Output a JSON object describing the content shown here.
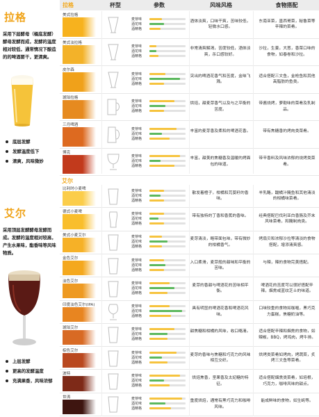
{
  "header": {
    "category": "拉格",
    "glass": "杯型",
    "params": "参数",
    "flavor": "风味风格",
    "pairing": "食物搭配"
  },
  "sections": [
    {
      "title": "拉格",
      "desc": "采用下层酵母（桶底发酵）酵母发酵而成，发酵的温度相对较低，通常情况下酿造的的啤酒要干，更清爽。",
      "bullets": [
        "底层发酵",
        "发酵温度低下",
        "清爽，风味微妙"
      ]
    },
    {
      "title": "艾尔",
      "desc": "采用顶层发酵酵母发酵而成。发酵的温度相对较高，产生水果味，酯香味等风味物质。",
      "bullets": [
        "上层发酵",
        "更高的发酵温度",
        "充满果香，风味浓郁"
      ]
    }
  ],
  "param_labels": [
    "麦芽味",
    "酒花味",
    "酒精格"
  ],
  "categories": [
    "拉格",
    "艾尔"
  ],
  "colors": {
    "accent": "#f2a81a",
    "bitter_bar": "#5bb85d",
    "malt_bar": "#f6c33d"
  },
  "rows": [
    {
      "group": "拉格",
      "name": "美式拉格",
      "color": "#f7b21e",
      "glass": "pilsner",
      "params": [
        0.35,
        0.4,
        0.3
      ],
      "flavor": "酒体淡爽，口味干爽，苦味较低，轻微水口感。",
      "pairing": "东南亚菜，墨西哥菜，秘鲁菜等辛辣的菜肴。"
    },
    {
      "group": "拉格",
      "name": "美式淡拉格",
      "color": "#f3b229",
      "glass": "pilsner",
      "params": [
        0.2,
        0.2,
        0.25
      ],
      "flavor": "非常清爽解渴，苦度较低，酒体淡爽，杀口感较好。",
      "pairing": "沙拉，生姜，大葱，香菜口味的食物，如春卷和沙拉。"
    },
    {
      "group": "拉格",
      "name": "皮尔森",
      "color": "#f0a11a",
      "glass": "pilsner",
      "params": [
        0.45,
        0.85,
        0.4
      ],
      "flavor": "突出的啤酒花香气和苦度，金味飞溅。",
      "pairing": "适合搭配三文鱼，金枪鱼和其他高脂肪的鱼类。"
    },
    {
      "group": "拉格",
      "name": "琥珀拉格",
      "color": "#e68a1f",
      "glass": "mug",
      "params": [
        0.7,
        0.45,
        0.4
      ],
      "flavor": "烘焙，甜麦芽香气以及与之平衡的苦度。",
      "pairing": "带酱烧烤，萝勒味的菜肴及乳制品。"
    },
    {
      "group": "拉格",
      "name": "三月啤酒",
      "color": "#dd6a20",
      "glass": "stein",
      "params": [
        0.75,
        0.35,
        0.55
      ],
      "flavor": "丰富的麦芽香及柔和的啤酒花香。",
      "pairing": "带有焦糖香的烤肉类菜肴。"
    },
    {
      "group": "拉格",
      "name": "博克",
      "color": "#c23a1c",
      "glass": "goblet",
      "params": [
        0.85,
        0.3,
        0.7
      ],
      "flavor": "丰富，甜美的焦糖香及温暖的烤面包的味道。",
      "pairing": "带辛香料及风味浓郁的烧烤类菜肴。"
    },
    {
      "group": "艾尔",
      "name": "比利时小麦啤",
      "color": "#fbcd4a",
      "glass": "pint",
      "params": [
        0.4,
        0.3,
        0.4
      ],
      "flavor": "散发着橙子，柑橘和芫荽籽的香味。",
      "pairing": "羊乳酪，酸橘汁腌鱼和其他清淡的柑橘味菜肴。"
    },
    {
      "group": "艾尔",
      "name": "德式小麦啤",
      "color": "#f9be2c",
      "glass": "weizen",
      "params": [
        0.4,
        0.25,
        0.4
      ],
      "flavor": "带有独特的丁香和香蕉的香味。",
      "pairing": "经典搭配巴伐利亚白香肠及芥末风味菜肴，和腌制肉类。"
    },
    {
      "group": "艾尔",
      "name": "美式小麦艾尔",
      "color": "#f6b127",
      "glass": "pint",
      "params": [
        0.35,
        0.5,
        0.35
      ],
      "flavor": "麦芽清淡，略带面包味，带有微妙的柑橘香气。",
      "pairing": "烤扇贝和浓郁沙拉等清淡的食物搭配，增添清爽感。"
    },
    {
      "group": "艾尔",
      "name": "金色艾尔",
      "color": "#f4a81e",
      "glass": "pint",
      "params": [
        0.4,
        0.45,
        0.4
      ],
      "flavor": "入口柔滑，麦芽般的甜味和平衡的苦味。",
      "pairing": "与辣，辣的食物完美搭配。"
    },
    {
      "group": "艾尔",
      "name": "淡色艾尔",
      "color": "#ee9a22",
      "glass": "pint",
      "params": [
        0.55,
        0.7,
        0.5
      ],
      "flavor": "麦芽的香甜与啤酒花的苦味相平衡。",
      "pairing": "啤酒花的苦度可以很好搭配辛辣，烟熏或蓝纹芝士的味道。"
    },
    {
      "group": "艾尔",
      "name": "印度淡色艾尔(IPA)",
      "color": "#e88520",
      "glass": "tulip",
      "params": [
        0.55,
        0.9,
        0.6
      ],
      "flavor": "具有明显的啤酒花香和啤酒花风味。",
      "pairing": "口味较重的食物如咖喱，黑巧克力蛋糕，焦糖奶油等。"
    },
    {
      "group": "艾尔",
      "name": "琥珀艾尔",
      "color": "#d86a24",
      "glass": "pint",
      "params": [
        0.7,
        0.5,
        0.5
      ],
      "flavor": "甜焦糖和柑橘的风味，收口略清。",
      "pairing": "适合搭配辛辣和烟熏的食物，如辣椒，BBQ，烤鸡肉，烤牛排。"
    },
    {
      "group": "艾尔",
      "name": "棕色艾尔",
      "color": "#b9481f",
      "glass": "pint",
      "params": [
        0.75,
        0.35,
        0.5
      ],
      "flavor": "麦芽的香味与焦糖和巧克力的风味相互交织。",
      "pairing": "烘烤类菜肴如烤肉，烤蔬菜，炙烤三文鱼等菜肴。"
    },
    {
      "group": "艾尔",
      "name": "波特",
      "color": "#7e2a18",
      "glass": "pint",
      "params": [
        0.85,
        0.4,
        0.55
      ],
      "flavor": "烘焙焦香，坚果香及太妃糖的特征。",
      "pairing": "适合搭配烟熏类菜肴，如培根，巧克力，咖啡风味的甜点。"
    },
    {
      "group": "艾尔",
      "name": "世涛",
      "color": "#3e1510",
      "glass": "pint",
      "params": [
        0.9,
        0.45,
        0.6
      ],
      "flavor": "重度烘焙，通常有黑巧克力和咖啡风味。",
      "pairing": "能成鲜味的食物，如生蚝等。"
    }
  ]
}
